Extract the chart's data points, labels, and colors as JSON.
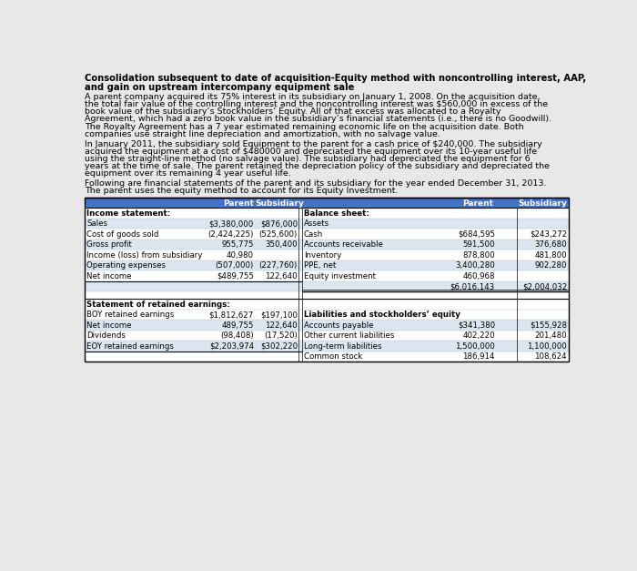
{
  "title_line1": "Consolidation subsequent to date of acquisition-Equity method with noncontrolling interest, AAP,",
  "title_line2": "and gain on upstream intercompany equipment sale",
  "para1_lines": [
    "A parent company acquired its 75% interest in its subsidiary on January 1, 2008. On the acquisition date,",
    "the total fair value of the controlling interest and the noncontrolling interest was $560,000 in excess of the",
    "book value of the subsidiary’s Stockholders’ Equity. All of that excess was allocated to a Royalty",
    "Agreement, which had a zero book value in the subsidiary’s financial statements (i.e., there is no Goodwill).",
    "The Royalty Agreement has a 7 year estimated remaining economic life on the acquisition date. Both",
    "companies use straight line depreciation and amortization, with no salvage value."
  ],
  "para2_lines": [
    "In January 2011, the subsidiary sold Equipment to the parent for a cash price of $240,000. The subsidiary",
    "acquired the equipment at a cost of $480000 and depreciated the equipment over its 10-year useful life",
    "using the straight-line method (no salvage value). The subsidiary had depreciated the equipment for 6",
    "years at the time of sale. The parent retained the depreciation policy of the subsidiary and depreciated the",
    "equipment over its remaining 4 year useful life."
  ],
  "para3_lines": [
    "Following are financial statements of the parent and its subsidiary for the year ended December 31, 2013.",
    "The parent uses the equity method to account for its Equity Investment."
  ],
  "header_bg": "#4472c4",
  "table_bg_alt": "#dce6f1",
  "table_bg_white": "#ffffff",
  "page_bg": "#e8e8e8",
  "income_rows": [
    [
      "Income statement:",
      "",
      "",
      "Balance sheet:",
      "",
      ""
    ],
    [
      "Sales",
      "$3,380,000",
      "$876,000",
      "Assets",
      "",
      ""
    ],
    [
      "Cost of goods sold",
      "(2,424,225)",
      "(525,600)",
      "Cash",
      "$684,595",
      "$243,272"
    ],
    [
      "Gross profit",
      "955,775",
      "350,400",
      "Accounts receivable",
      "591,500",
      "376,680"
    ],
    [
      "Income (loss) from subsidiary",
      "40,980",
      "",
      "Inventory",
      "878,800",
      "481,800"
    ],
    [
      "Operating expenses",
      "(507,000)",
      "(227,760)",
      "PPE, net",
      "3,400,280",
      "902,280"
    ],
    [
      "Net income",
      "$489,755",
      "122,640",
      "Equity investment",
      "460,968",
      ""
    ],
    [
      "",
      "",
      "",
      "",
      "$6,016,143",
      "$2,004,032"
    ]
  ],
  "retained_rows": [
    [
      "BOY retained earnings",
      "$1,812,627",
      "$197,100",
      "Liabilities and stockholders’ equity",
      "",
      ""
    ],
    [
      "Net income",
      "489,755",
      "122,640",
      "Accounts payable",
      "$341,380",
      "$155,928"
    ],
    [
      "Dividends",
      "(98,408)",
      "(17,520)",
      "Other current liabilities",
      "402,220",
      "201,480"
    ],
    [
      "EOY retained earnings",
      "$2,203,974",
      "$302,220",
      "Long-term liabilities",
      "1,500,000",
      "1,100,000"
    ],
    [
      "",
      "",
      "",
      "Common stock",
      "186,914",
      "108,624"
    ]
  ]
}
